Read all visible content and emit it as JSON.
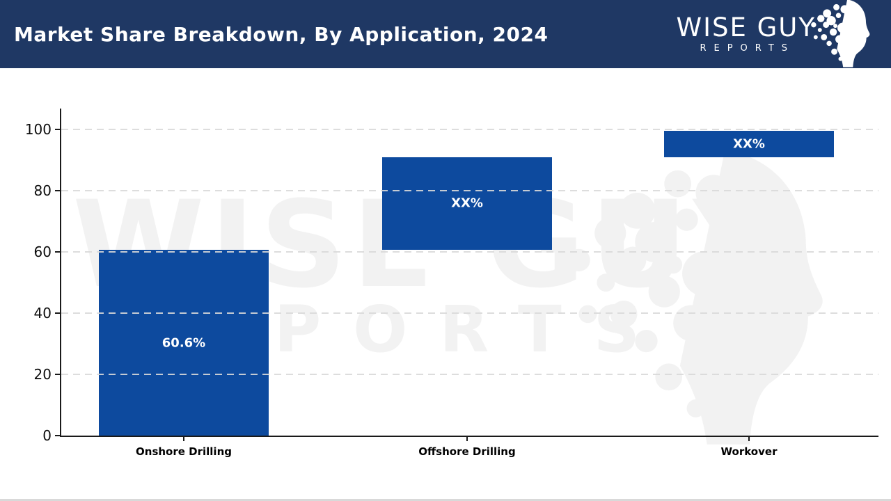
{
  "header": {
    "title": "Market Share Breakdown, By Application, 2024",
    "logo": {
      "line1": "WISE GUY",
      "line2": "REPORTS"
    }
  },
  "watermark": {
    "line1": "WISE GUY",
    "line2": "REPORTS"
  },
  "colors": {
    "header_bg": "#1f3864",
    "bar": "#0d4a9e",
    "grid": "#d9d9d9",
    "axis": "#1a1a1a",
    "bar_label_text": "#ffffff",
    "watermark": "#f2f2f2"
  },
  "chart_data": {
    "type": "bar",
    "subtype": "waterfall",
    "title": "Market Share Breakdown, By Application, 2024",
    "categories": [
      "Onshore Drilling",
      "Offshore Drilling",
      "Workover"
    ],
    "segments": [
      {
        "category": "Onshore Drilling",
        "label": "60.6%",
        "start": 0,
        "end": 60.6
      },
      {
        "category": "Offshore Drilling",
        "label": "XX%",
        "start": 60.6,
        "end": 91.0
      },
      {
        "category": "Workover",
        "label": "XX%",
        "start": 91.0,
        "end": 99.5
      }
    ],
    "yticks": [
      0,
      20,
      40,
      60,
      80,
      100
    ],
    "ylim": [
      0,
      107
    ],
    "xlabel": "",
    "ylabel": "",
    "grid": "dashed-horizontal",
    "legend": "none"
  }
}
